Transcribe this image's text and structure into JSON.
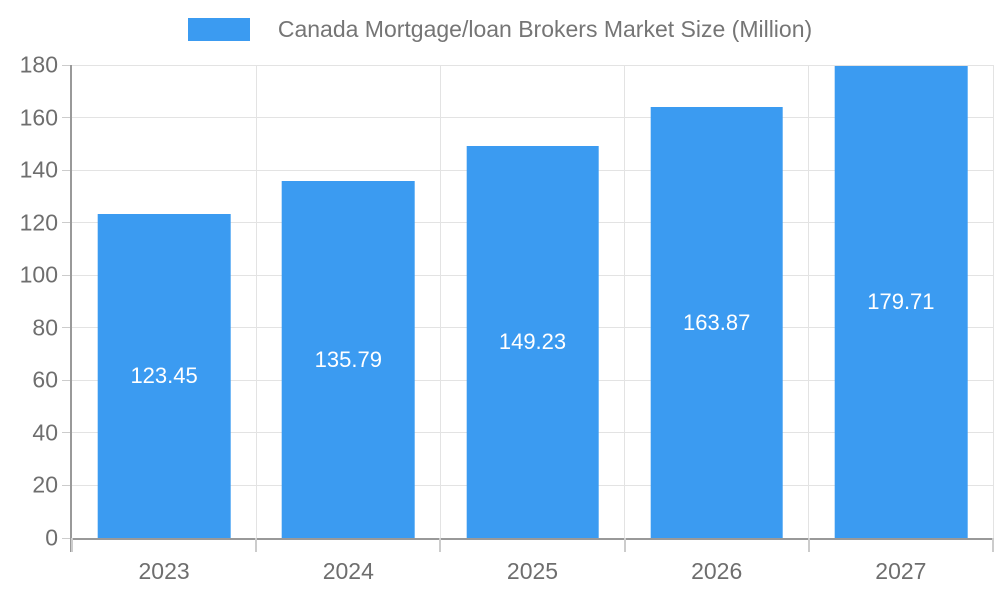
{
  "chart": {
    "legend_label": "Canada Mortgage/loan Brokers Market Size (Million)"
  },
  "chart_data": {
    "type": "bar",
    "title": "Canada Mortgage/loan Brokers Market Size (Million)",
    "categories": [
      "2023",
      "2024",
      "2025",
      "2026",
      "2027"
    ],
    "values": [
      123.45,
      135.79,
      149.23,
      163.87,
      179.71
    ],
    "value_labels": [
      "123.45",
      "135.79",
      "149.23",
      "163.87",
      "179.71"
    ],
    "xlabel": "",
    "ylabel": "",
    "ylim": [
      0,
      180
    ],
    "ytick_step": 20,
    "grid": true,
    "legend_position": "top-center",
    "bar_width_fraction": 0.72,
    "value_label_position": "center-of-bar",
    "colors": {
      "bar": "#3b9bf1",
      "grid": "#e3e3e3",
      "axis": "#999999",
      "tick": "#cccccc",
      "axis_text": "#6e6e6e",
      "title_text": "#757575",
      "value_text": "#ffffff",
      "background": "#ffffff"
    }
  }
}
